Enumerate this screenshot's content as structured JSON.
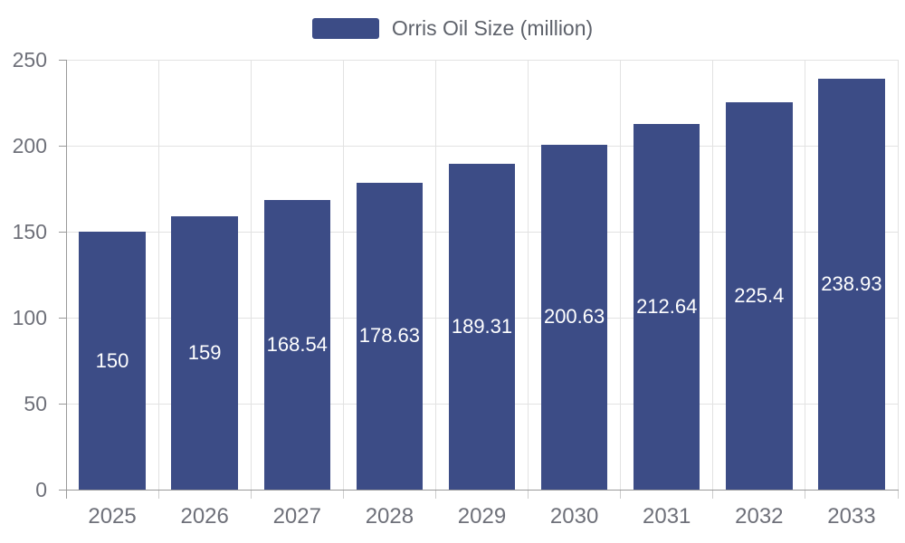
{
  "legend": {
    "label": "Orris Oil Size (million)"
  },
  "colors": {
    "bar": "#3c4c86",
    "grid": "#e2e2e2",
    "axis": "#999999",
    "tick": "#cccccc",
    "tick_label": "#6e7079",
    "legend_text": "#5e626b",
    "value_label": "#ffffff",
    "background": "#ffffff"
  },
  "chart_data": {
    "type": "bar",
    "title": "",
    "xlabel": "",
    "ylabel": "",
    "categories": [
      "2025",
      "2026",
      "2027",
      "2028",
      "2029",
      "2030",
      "2031",
      "2032",
      "2033"
    ],
    "series": [
      {
        "name": "Orris Oil Size (million)",
        "values": [
          150,
          159,
          168.54,
          178.63,
          189.31,
          200.63,
          212.64,
          225.4,
          238.93
        ],
        "labels": [
          "150",
          "159",
          "168.54",
          "178.63",
          "189.31",
          "200.63",
          "212.64",
          "225.4",
          "238.93"
        ]
      }
    ],
    "ylim": [
      0,
      250
    ],
    "yticks": [
      0,
      50,
      100,
      150,
      200,
      250
    ],
    "grid": true,
    "legend_position": "top-center",
    "value_label_position": "inside-center"
  }
}
